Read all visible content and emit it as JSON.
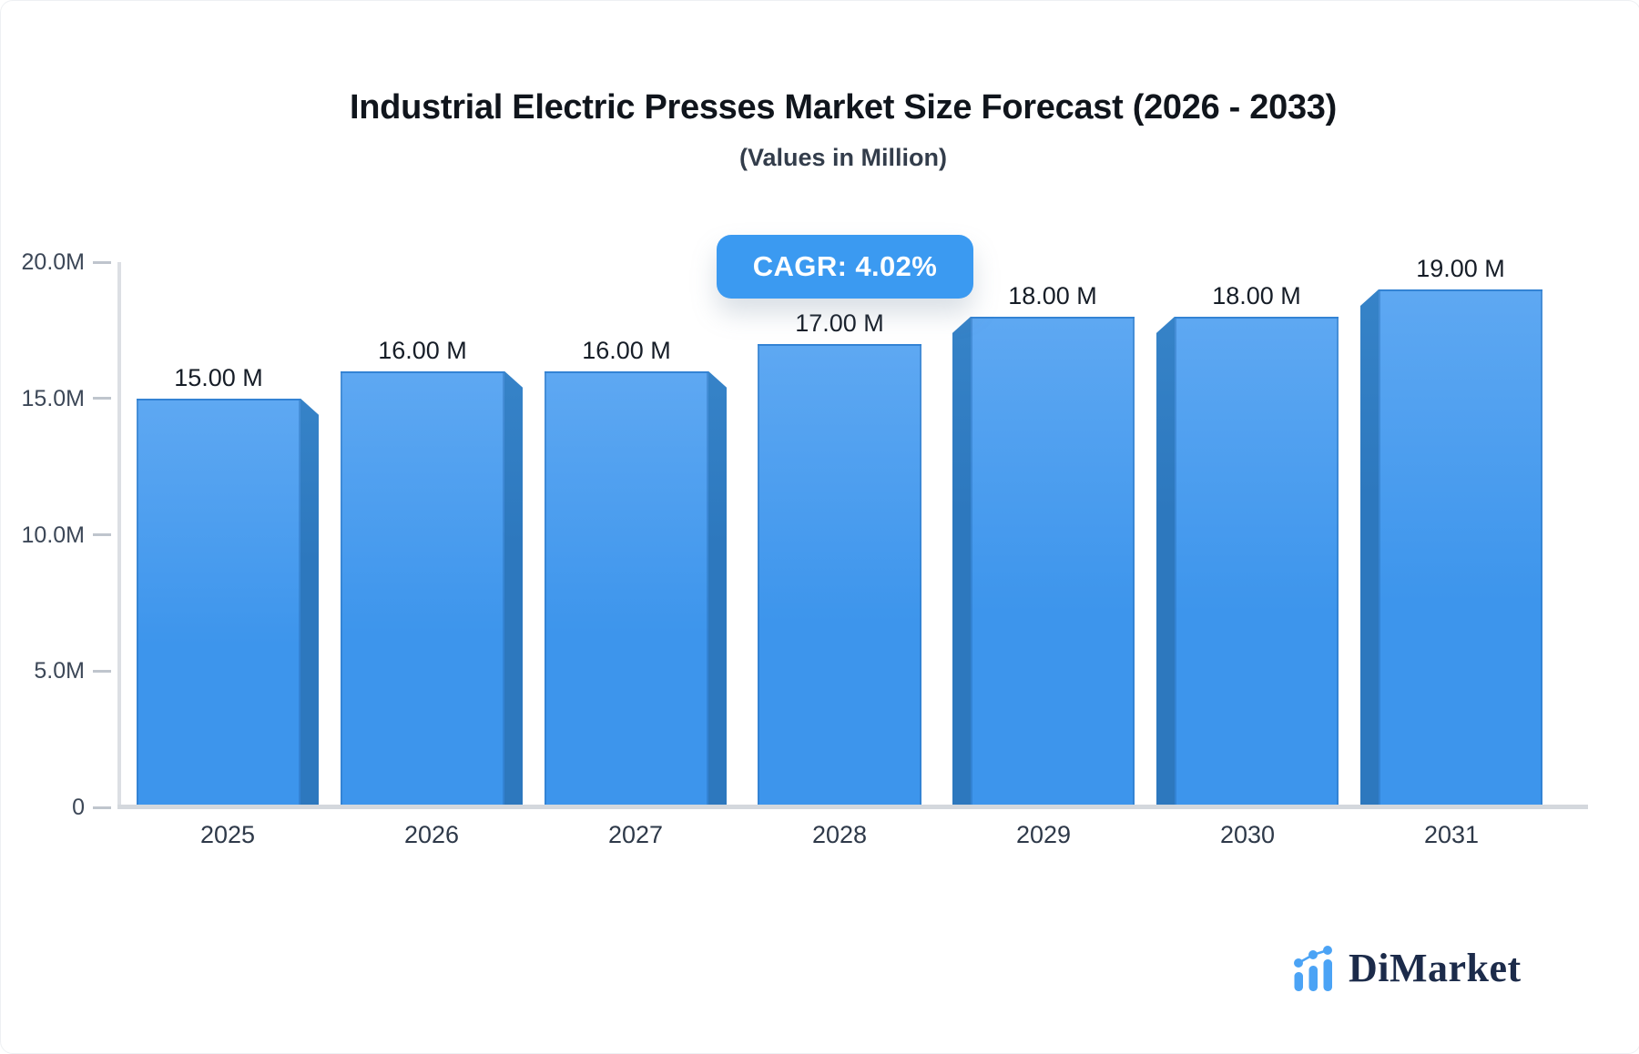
{
  "header": {
    "title": "Industrial Electric Presses Market Size Forecast (2026 - 2033)",
    "subtitle": "(Values in Million)"
  },
  "badge": {
    "label": "CAGR: 4.02%",
    "bg_color": "#3B9AF1",
    "text_color": "#FFFFFF"
  },
  "logo": {
    "text": "DiMarket",
    "icon": "bar-chart-logo-icon",
    "icon_color": "#4BA3F5",
    "text_color": "#1C2B4A"
  },
  "chart_data": {
    "type": "bar",
    "title": "Industrial Electric Presses Market Size Forecast (2026 - 2033)",
    "subtitle": "(Values in Million)",
    "unit": "Million",
    "categories": [
      "2025",
      "2026",
      "2027",
      "2028",
      "2029",
      "2030",
      "2031"
    ],
    "values": [
      15,
      16,
      16,
      17,
      18,
      18,
      19
    ],
    "value_labels": [
      "15.00 M",
      "16.00 M",
      "16.00 M",
      "17.00 M",
      "18.00 M",
      "18.00 M",
      "19.00 M"
    ],
    "y_ticks": [
      {
        "value": 20,
        "label": "20.0M"
      },
      {
        "value": 15,
        "label": "15.0M"
      },
      {
        "value": 10,
        "label": "10.0M"
      },
      {
        "value": 5,
        "label": "5.0M"
      },
      {
        "value": 0,
        "label": "0"
      }
    ],
    "ylim": [
      0,
      20
    ],
    "xlabel": "",
    "ylabel": "",
    "grid": false,
    "legend": "none",
    "annotations": [
      {
        "text": "CAGR: 4.02%"
      }
    ],
    "colors": {
      "bar_face_top": "#5EA8F2",
      "bar_face_bottom": "#3D95EC",
      "bar_side": "#2D78BE",
      "axis_line": "#DCDFE4",
      "tick_text": "#3C4757"
    }
  }
}
